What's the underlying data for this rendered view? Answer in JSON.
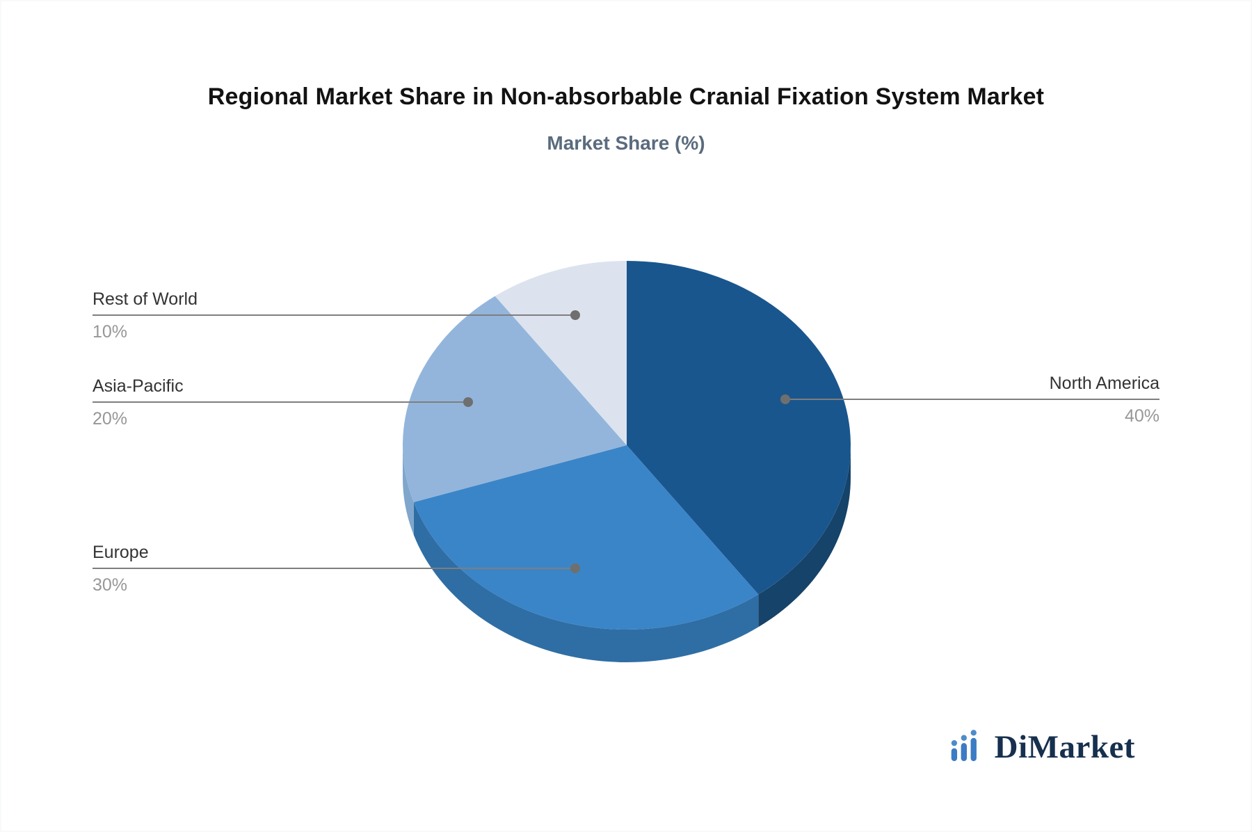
{
  "title": "Regional Market Share in Non-absorbable Cranial Fixation System Market",
  "subtitle": "Market Share (%)",
  "logo": {
    "text": "DiMarket"
  },
  "colors": {
    "label_text": "#333333",
    "percent_text": "#979797",
    "connector": "#7e7e7e",
    "subtitle": "#5a6b7d",
    "logo_blue": "#3b7cc4",
    "logo_navy": "#16304e"
  },
  "chart_data": {
    "type": "pie",
    "style": "3d",
    "title": "Regional Market Share in Non-absorbable Cranial Fixation System Market",
    "subtitle": "Market Share (%)",
    "unit": "%",
    "start_angle_deg": 0,
    "direction": "clockwise",
    "legend_position": "callout-labels",
    "slices": [
      {
        "label": "North America",
        "value": 40,
        "pct_label": "40%",
        "color": "#1a568e",
        "side_color": "#154369"
      },
      {
        "label": "Europe",
        "value": 30,
        "pct_label": "30%",
        "color": "#3a85c8",
        "side_color": "#2f6ea4"
      },
      {
        "label": "Asia-Pacific",
        "value": 20,
        "pct_label": "20%",
        "color": "#93b5db",
        "side_color": "#7fa6cc"
      },
      {
        "label": "Rest of World",
        "value": 10,
        "pct_label": "10%",
        "color": "#dce3ee",
        "side_color": "#c2ccdb"
      }
    ]
  }
}
